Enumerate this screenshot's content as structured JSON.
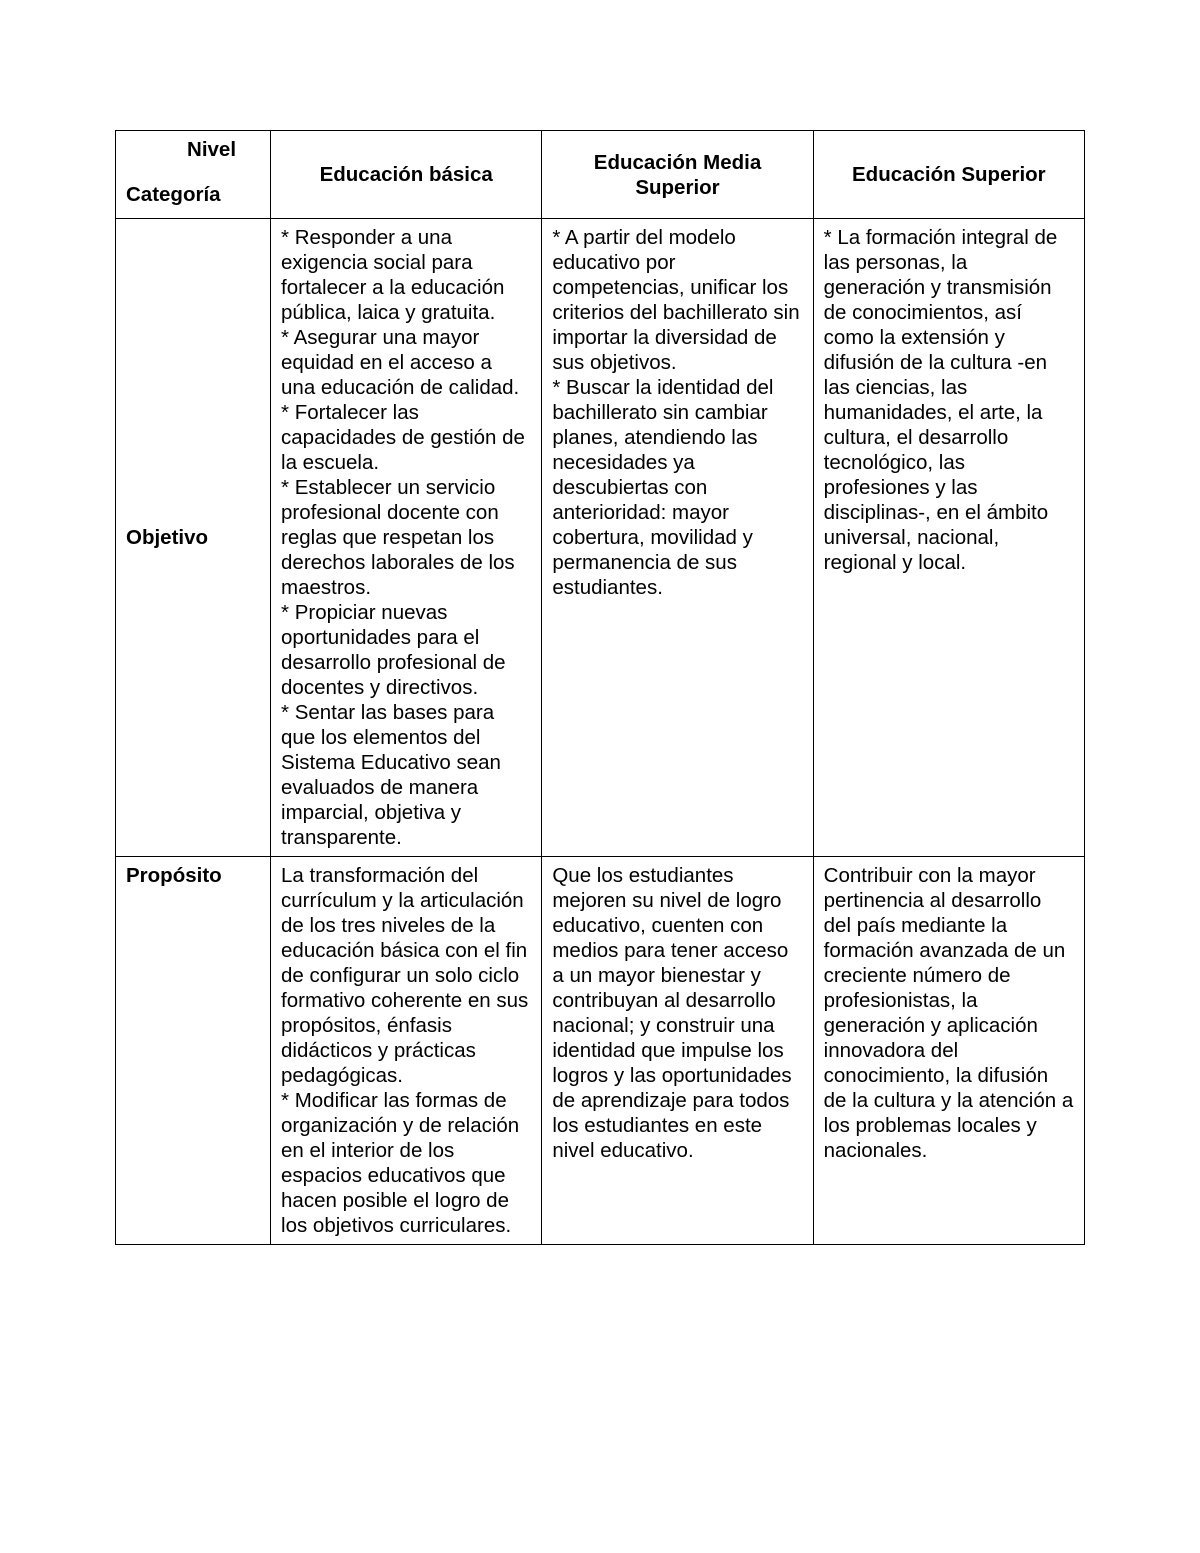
{
  "table": {
    "header": {
      "corner_top": "Nivel",
      "corner_bottom": "Categoría",
      "col1": "Educación básica",
      "col2": "Educación Media Superior",
      "col3": "Educación Superior"
    },
    "rows": [
      {
        "label": "Objetivo",
        "label_valign": "middle",
        "col1": "* Responder a una exigencia social para fortalecer a la educación pública, laica y gratuita.\n* Asegurar una mayor equidad en el acceso a una educación de calidad.\n* Fortalecer las capacidades de gestión de la escuela.\n* Establecer un servicio profesional docente con reglas que respetan los derechos laborales de los maestros.\n* Propiciar nuevas oportunidades para el desarrollo profesional de docentes y directivos.\n* Sentar las bases para que los elementos del Sistema Educativo sean evaluados de manera imparcial, objetiva y transparente.",
        "col2": "* A partir del modelo educativo por competencias, unificar los criterios del bachillerato sin importar la diversidad de sus objetivos.\n* Buscar la identidad del bachillerato sin cambiar planes, atendiendo las necesidades ya descubiertas con anterioridad: mayor cobertura, movilidad y permanencia de sus estudiantes.",
        "col3": "* La formación integral de las personas, la generación y transmisión de conocimientos, así como la extensión y difusión de la cultura -en las ciencias, las humanidades, el arte, la cultura, el desarrollo tecnológico, las profesiones y las disciplinas-, en el ámbito universal, nacional, regional y local."
      },
      {
        "label": "Propósito",
        "label_valign": "top",
        "col1": "La transformación del currículum y la articulación de los tres niveles de la educación básica con el fin de configurar un solo ciclo formativo coherente en sus propósitos, énfasis didácticos y prácticas pedagógicas.\n* Modificar las formas de organización y de relación en el interior de los espacios educativos que hacen posible el logro de los objetivos curriculares.",
        "col2": "Que los estudiantes mejoren su nivel de logro educativo, cuenten con medios para tener acceso a un mayor bienestar y contribuyan al desarrollo nacional; y construir una identidad que impulse los logros y las oportunidades de aprendizaje para todos los estudiantes en este nivel educativo.",
        "col3": "Contribuir con la mayor pertinencia al desarrollo del país mediante la formación avanzada de un creciente número de profesionistas, la generación y aplicación innovadora del conocimiento, la difusión de la cultura y la atención a los problemas locales y nacionales."
      }
    ]
  },
  "colors": {
    "border": "#000000",
    "text": "#000000",
    "background": "#ffffff"
  }
}
